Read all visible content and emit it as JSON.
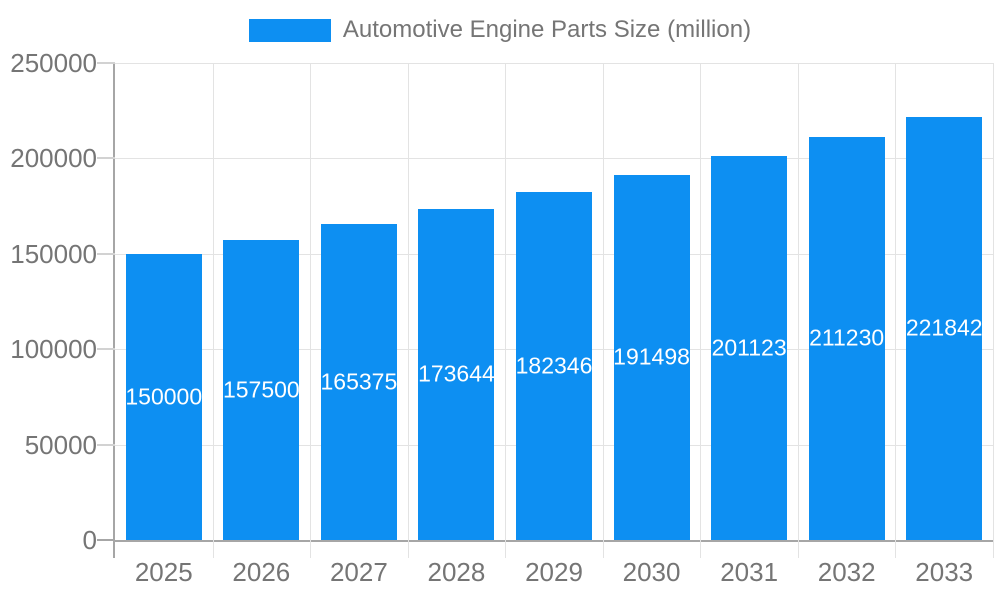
{
  "chart_data": {
    "type": "bar",
    "title": "Automotive Engine Parts Size (million)",
    "categories": [
      "2025",
      "2026",
      "2027",
      "2028",
      "2029",
      "2030",
      "2031",
      "2032",
      "2033"
    ],
    "values": [
      150000,
      157500,
      165375,
      173644,
      182346,
      191498,
      201123,
      211230,
      221842
    ],
    "data_labels": [
      "150000",
      "157500",
      "165375",
      "173644",
      "182346",
      "191498",
      "201123",
      "211230",
      "221842"
    ],
    "xlabel": "",
    "ylabel": "",
    "ylim": [
      0,
      250000
    ],
    "y_ticks": [
      "0",
      "50000",
      "100000",
      "150000",
      "200000",
      "250000"
    ],
    "grid": "on",
    "legend_position": "top",
    "colors": {
      "bar": "#0d8ff2",
      "data_label": "#ffffff",
      "axis_text": "#757575",
      "axis_line": "#a6a6a6",
      "gridline": "#e3e3e3"
    }
  }
}
